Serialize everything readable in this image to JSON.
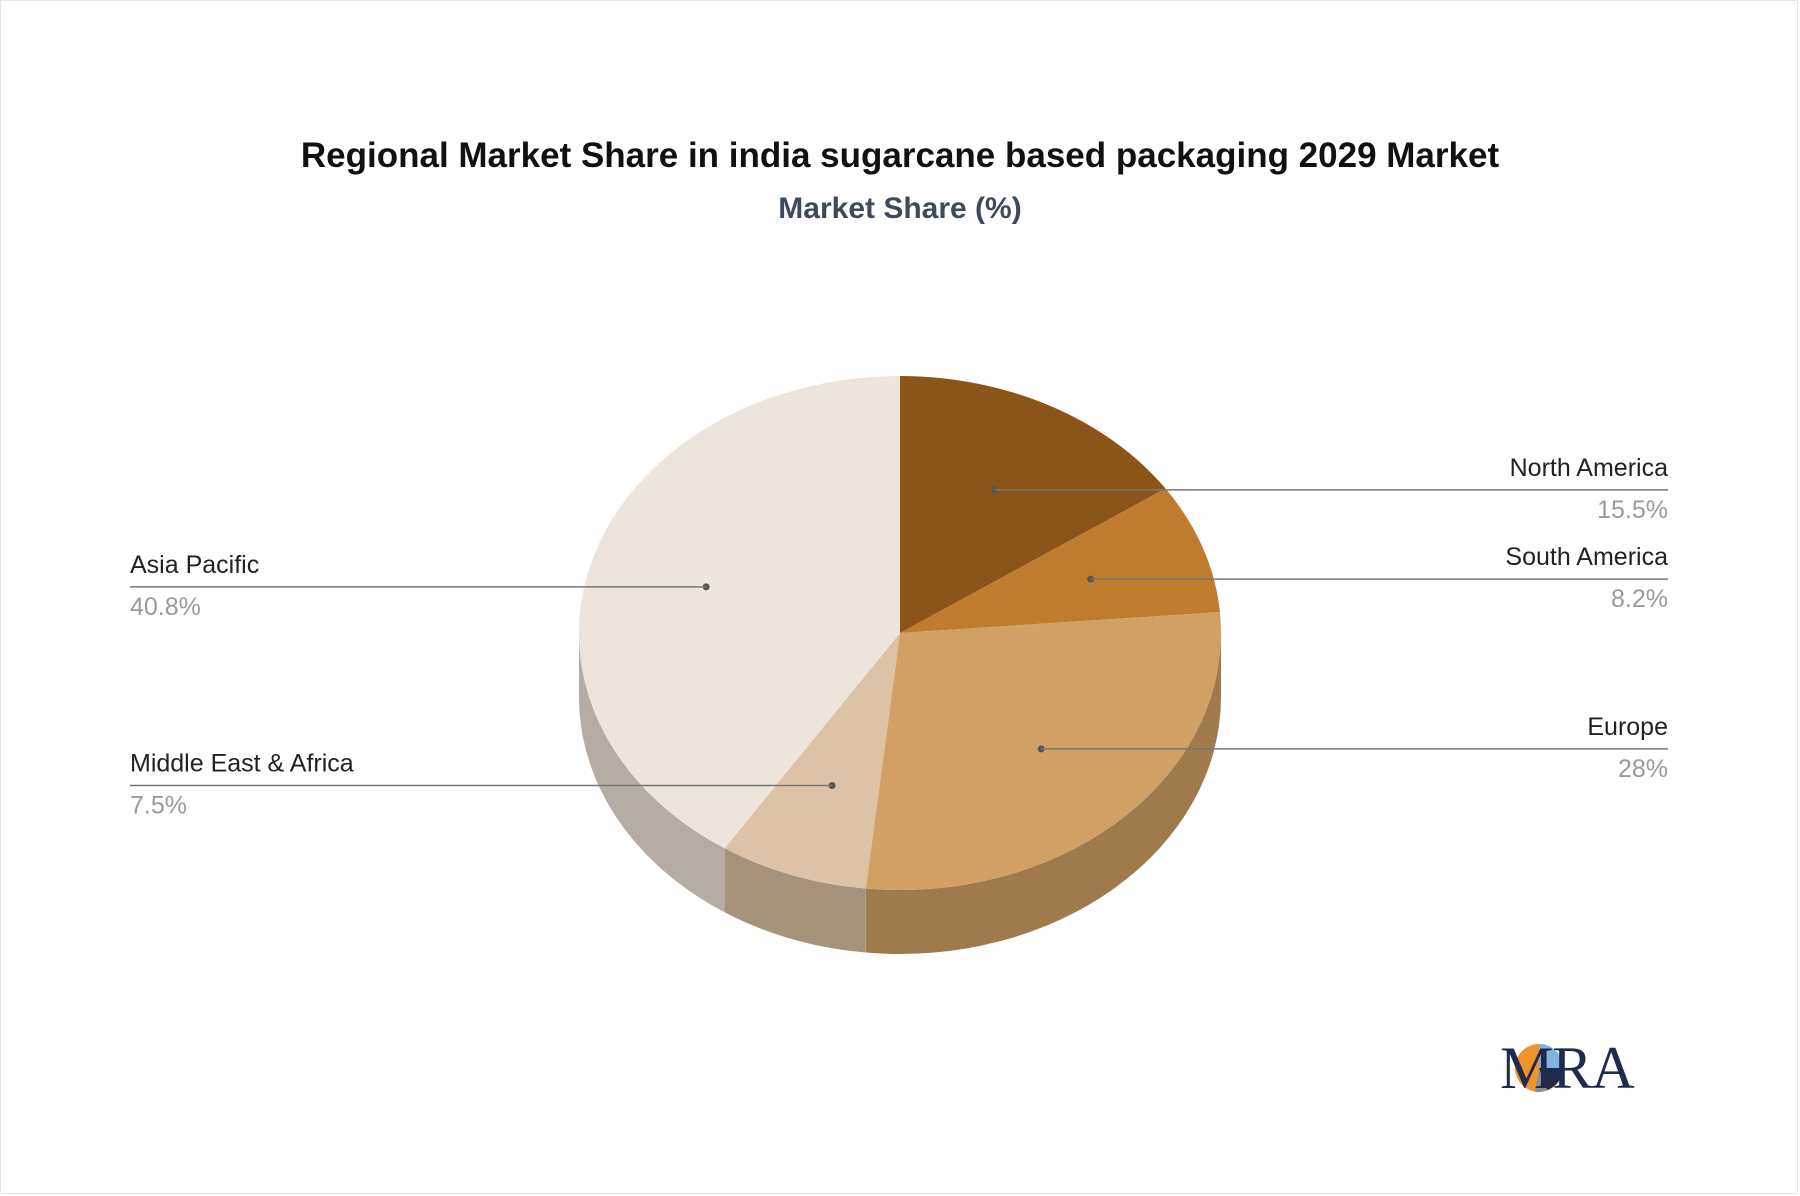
{
  "chart_data": {
    "type": "pie",
    "title": "Regional Market Share in india sugarcane based packaging 2029 Market",
    "subtitle": "Market Share (%)",
    "slices": [
      {
        "label": "North America",
        "value": 15.5,
        "display": "15.5%",
        "color": "#8b5419",
        "side_color": "#6b4113"
      },
      {
        "label": "South America",
        "value": 8.2,
        "display": "8.2%",
        "color": "#c07c2e",
        "side_color": "#94601f"
      },
      {
        "label": "Europe",
        "value": 28,
        "display": "28%",
        "color": "#d2a064",
        "side_color": "#9e7a4c"
      },
      {
        "label": "Middle East & Africa",
        "value": 7.5,
        "display": "7.5%",
        "color": "#ddc3a5",
        "side_color": "#a6937c"
      },
      {
        "label": "Asia Pacific",
        "value": 40.8,
        "display": "40.8%",
        "color": "#ede4db",
        "side_color": "#b5aca4"
      }
    ]
  },
  "logo": {
    "text": "MRA"
  }
}
